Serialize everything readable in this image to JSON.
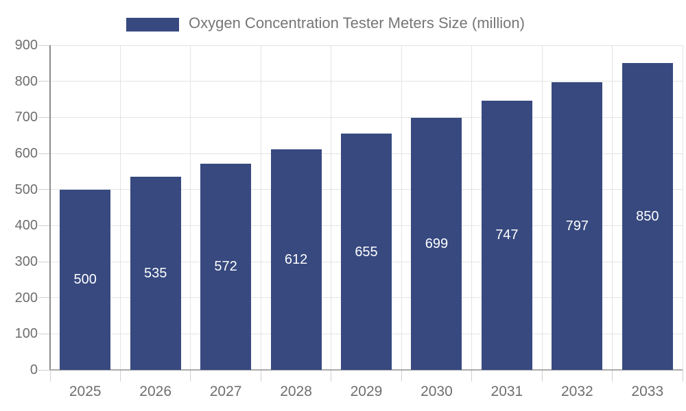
{
  "legend": {
    "label": "Oxygen Concentration Tester Meters Size (million)"
  },
  "chart_data": {
    "type": "bar",
    "title": "Oxygen Concentration Tester Meters Size (million)",
    "categories": [
      "2025",
      "2026",
      "2027",
      "2028",
      "2029",
      "2030",
      "2031",
      "2032",
      "2033"
    ],
    "values": [
      500,
      535,
      572,
      612,
      655,
      699,
      747,
      797,
      850
    ],
    "value_labels": [
      "500",
      "535",
      "572",
      "612",
      "655",
      "699",
      "747",
      "797",
      "850"
    ],
    "xlabel": "",
    "ylabel": "",
    "ylim": [
      0,
      900
    ],
    "ytick_step": 100,
    "ytick_labels": [
      "0",
      "100",
      "200",
      "300",
      "400",
      "500",
      "600",
      "700",
      "800",
      "900"
    ],
    "grid": true,
    "legend_position": "top",
    "colors": {
      "bar": "#37497F",
      "bar_value_text": "#FFFFFF",
      "gridline": "#E3E3E3",
      "y_axis_line": "#8C8C8C",
      "x_axis_line": "#ABABAB",
      "tick_mark": "#CFCFCF",
      "axis_text": "#6E6E6E",
      "legend_text": "#767676"
    }
  }
}
